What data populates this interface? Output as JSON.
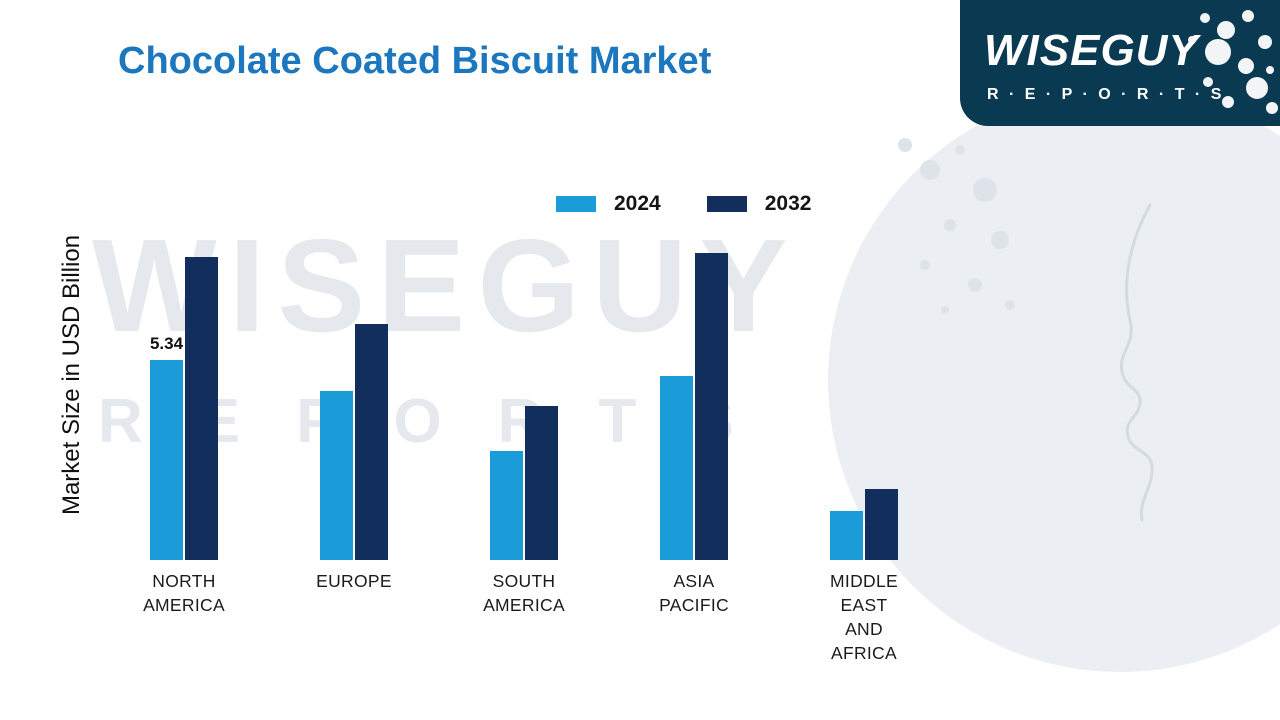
{
  "page": {
    "title": "Chocolate Coated Biscuit Market"
  },
  "logo": {
    "wordmark": "WISEGUY",
    "subtitle": "R · E · P · O · R · T · S"
  },
  "watermark": {
    "line1": "WISEGUY",
    "line2": "REPORTS"
  },
  "chart_data": {
    "type": "bar",
    "title": "Chocolate Coated Biscuit Market",
    "xlabel": "",
    "ylabel": "Market Size in USD Billion",
    "unit": "USD Billion",
    "categories": [
      "NORTH AMERICA",
      "EUROPE",
      "SOUTH AMERICA",
      "ASIA PACIFIC",
      "MIDDLE EAST AND AFRICA"
    ],
    "tick_labels": [
      "NORTH\nAMERICA",
      "EUROPE",
      "SOUTH\nAMERICA",
      "ASIA\nPACIFIC",
      "MIDDLE\nEAST\nAND\nAFRICA"
    ],
    "series": [
      {
        "name": "2024",
        "color": "#1b9bd7",
        "values": [
          5.34,
          4.5,
          2.9,
          4.9,
          1.3
        ]
      },
      {
        "name": "2032",
        "color": "#112e5c",
        "values": [
          8.1,
          6.3,
          4.1,
          8.2,
          1.9
        ]
      }
    ],
    "annotations": [
      {
        "category": "NORTH AMERICA",
        "series": "2024",
        "label": "5.34"
      }
    ],
    "ylim": [
      0,
      9
    ],
    "grid": false,
    "legend_position": "top"
  },
  "colors": {
    "title": "#1c77be",
    "series_2024": "#1b9bd7",
    "series_2032": "#112e5c",
    "logo_background": "#0a3a52",
    "watermark": "#e5e9ee"
  }
}
